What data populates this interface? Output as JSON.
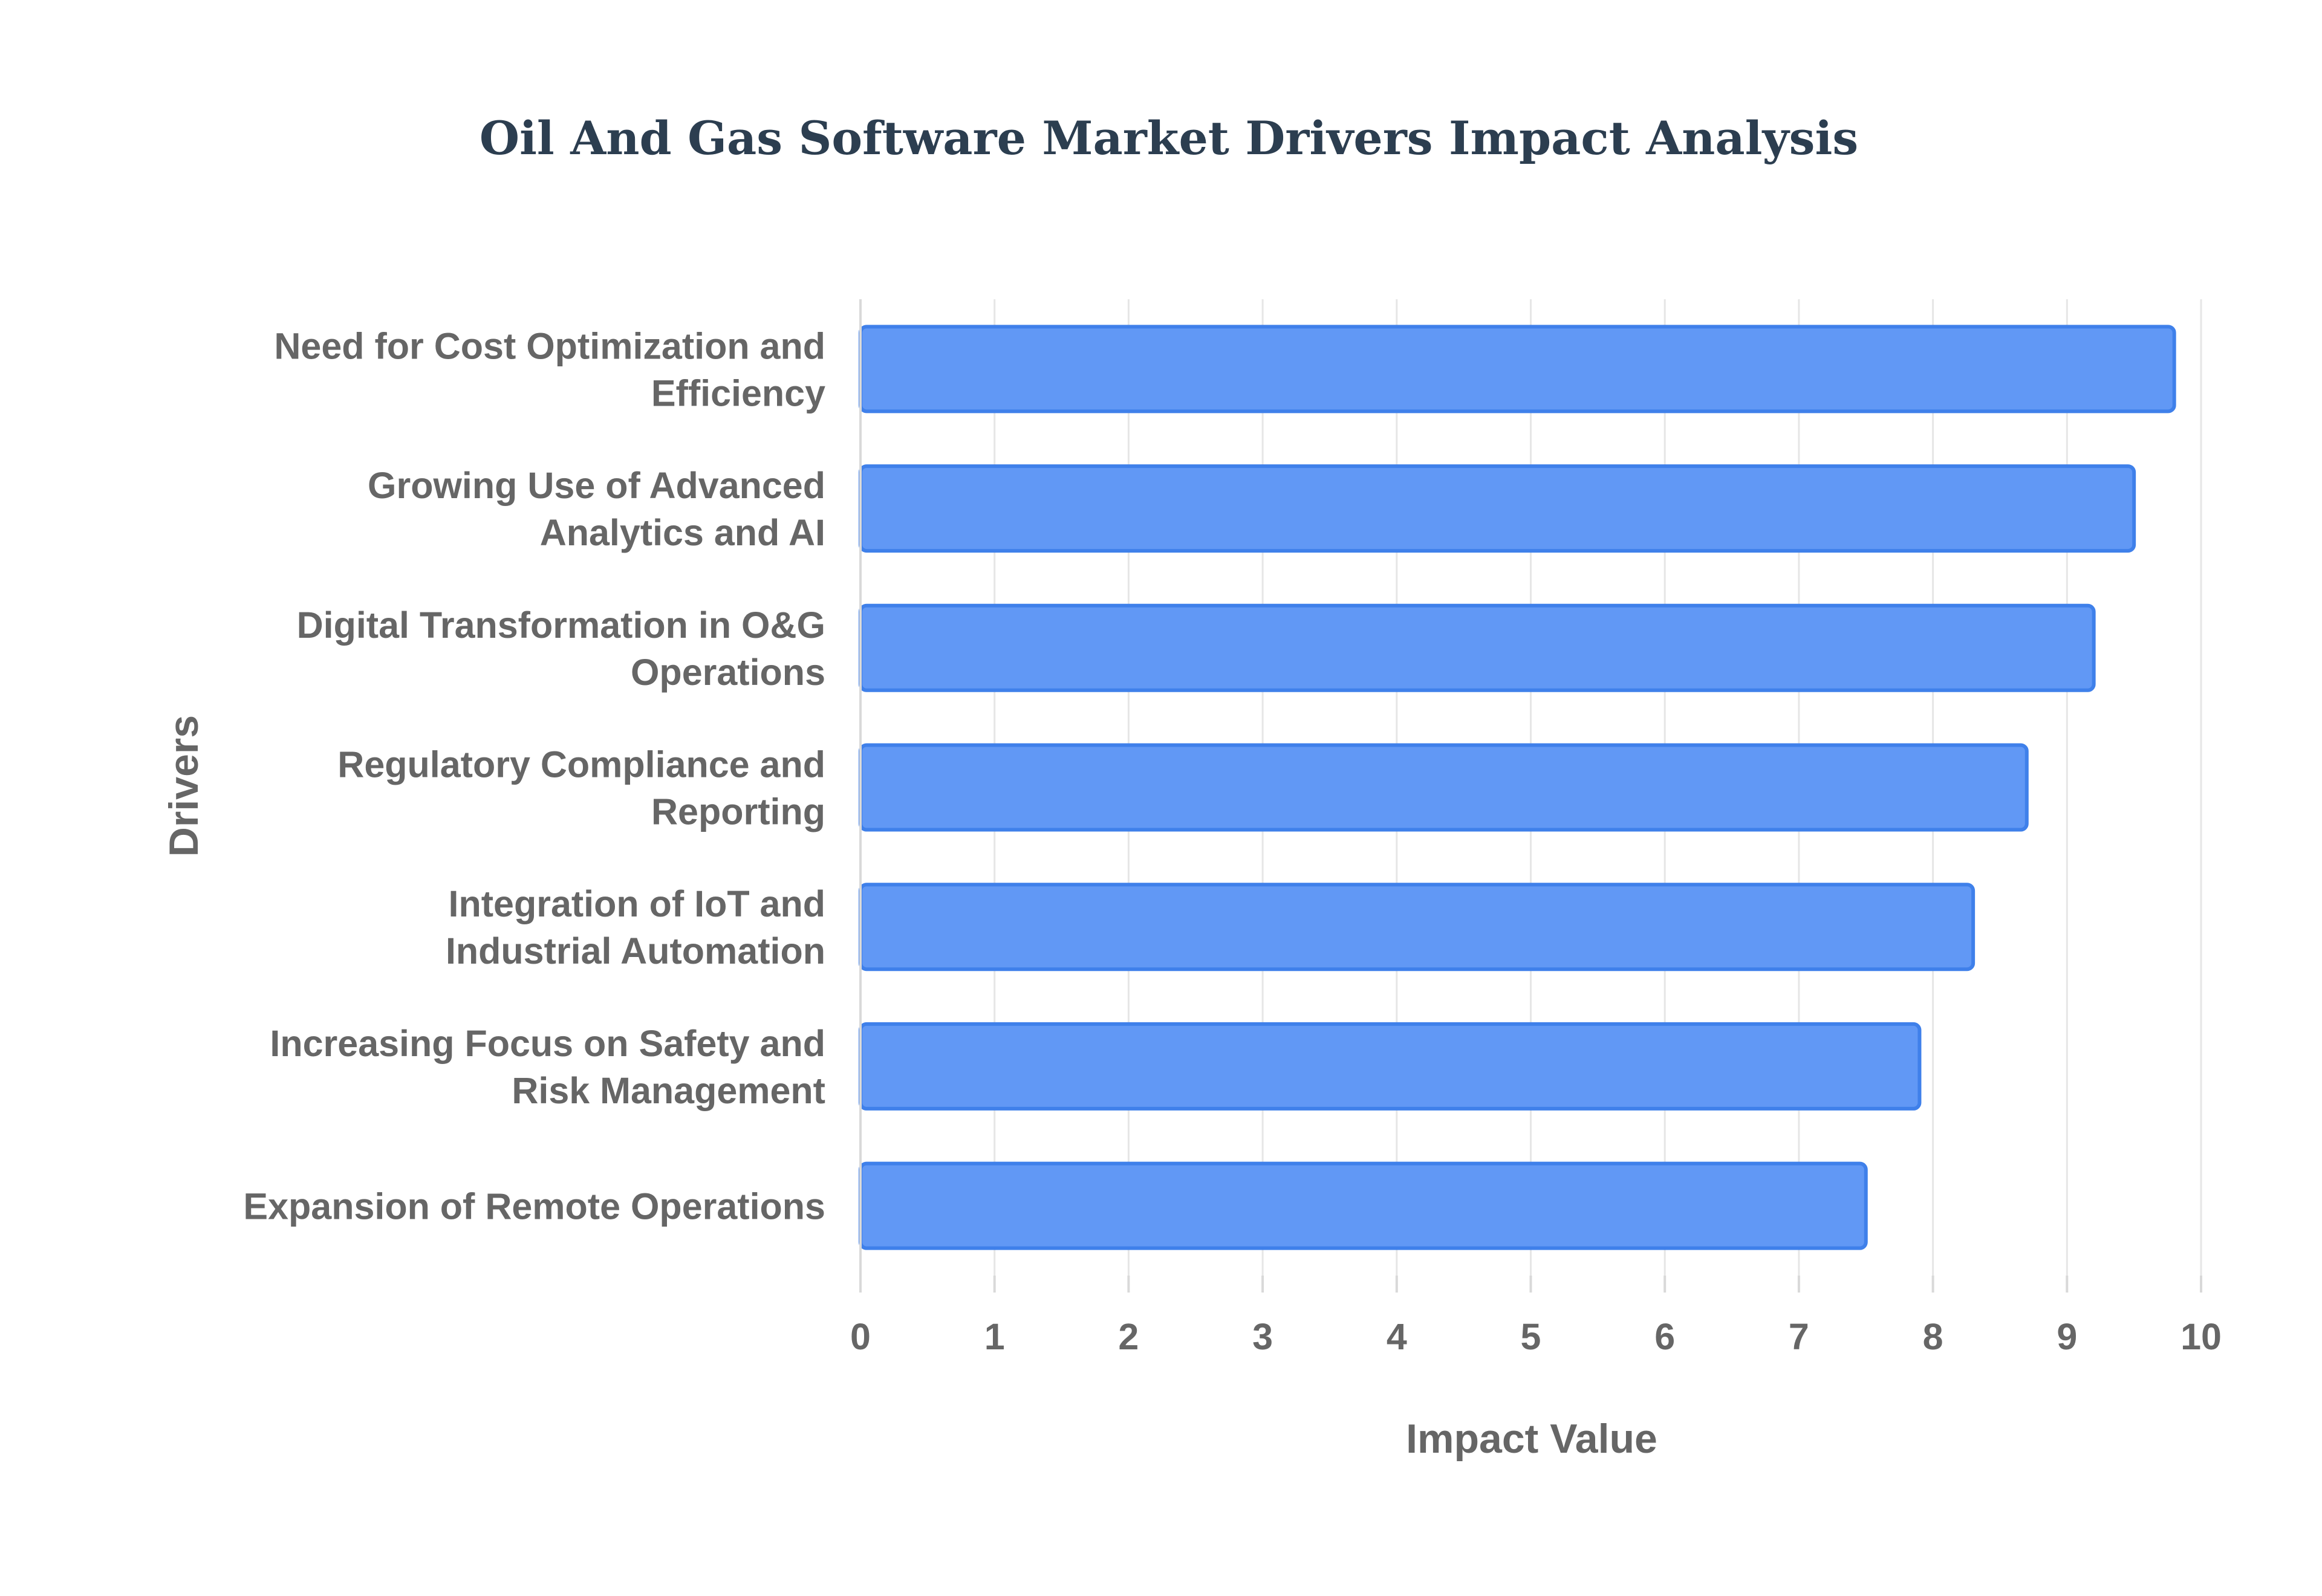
{
  "chart_data": {
    "type": "bar",
    "orientation": "horizontal",
    "title": "Oil And Gas Software Market Drivers Impact Analysis",
    "xlabel": "Impact Value",
    "ylabel": "Drivers",
    "xlim": [
      0,
      10
    ],
    "x_ticks": [
      "0",
      "1",
      "2",
      "3",
      "4",
      "5",
      "6",
      "7",
      "8",
      "9",
      "10"
    ],
    "grid": true,
    "legend": "none",
    "bar_color": "#6198f5",
    "bar_border_color": "#3f80ea",
    "categories": [
      [
        "Need for Cost Optimization and",
        "Efficiency"
      ],
      [
        "Growing Use of Advanced",
        "Analytics and AI"
      ],
      [
        "Digital Transformation in O&G",
        "Operations"
      ],
      [
        "Regulatory Compliance and",
        "Reporting"
      ],
      [
        "Integration of IoT and",
        "Industrial Automation"
      ],
      [
        "Increasing Focus on Safety and",
        "Risk Management"
      ],
      [
        "Expansion of Remote Operations"
      ]
    ],
    "values": [
      9.8,
      9.5,
      9.2,
      8.7,
      8.3,
      7.9,
      7.5
    ]
  }
}
